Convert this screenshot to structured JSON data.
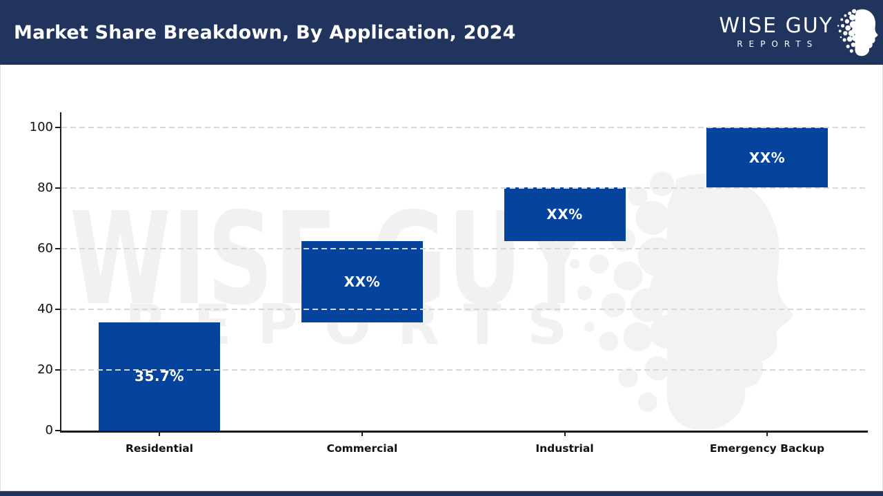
{
  "header": {
    "title": "Market Share Breakdown, By Application, 2024",
    "logo": {
      "name": "WISE GUY",
      "subtitle": "REPORTS"
    }
  },
  "watermark": {
    "name": "WISE GUY",
    "subtitle": "REPORTS"
  },
  "chart_data": {
    "type": "bar",
    "subtype": "floating-waterfall",
    "title": "Market Share Breakdown, By Application, 2024",
    "categories": [
      "Residential",
      "Commercial",
      "Industrial",
      "Emergency Backup"
    ],
    "bars": [
      {
        "category": "Residential",
        "value_label": "35.7%",
        "start": 0,
        "end": 35.7
      },
      {
        "category": "Commercial",
        "value_label": "XX%",
        "start": 35.7,
        "end": 62.5
      },
      {
        "category": "Industrial",
        "value_label": "XX%",
        "start": 62.5,
        "end": 80.2
      },
      {
        "category": "Emergency Backup",
        "value_label": "XX%",
        "start": 80.2,
        "end": 100
      }
    ],
    "yticks": [
      0,
      20,
      40,
      60,
      80,
      100
    ],
    "ylim": [
      0,
      105
    ],
    "xlabel": "",
    "ylabel": "",
    "grid": "horizontal-dashed",
    "legend": "none"
  },
  "colors": {
    "header_bg": "#21345e",
    "footer_bg": "#21345e",
    "bar": "#05449c",
    "gridline": "#d7d7d7",
    "axis": "#1a1a1a",
    "watermark": "#f1f1f2"
  }
}
